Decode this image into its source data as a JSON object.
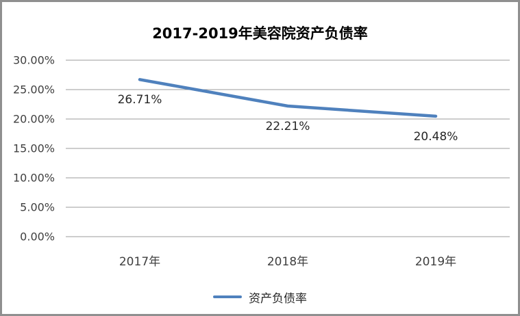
{
  "chart_data": {
    "type": "line",
    "title": "2017-2019年美容院资产负债率",
    "categories": [
      "2017年",
      "2018年",
      "2019年"
    ],
    "series": [
      {
        "name": "资产负债率",
        "values": [
          26.71,
          22.21,
          20.48
        ],
        "color": "#4F81BD"
      }
    ],
    "data_labels": [
      "26.71%",
      "22.21%",
      "20.48%"
    ],
    "y_ticks": [
      "30.00%",
      "25.00%",
      "20.00%",
      "15.00%",
      "10.00%",
      "5.00%",
      "0.00%"
    ],
    "ylim": [
      0,
      30
    ],
    "xlabel": "",
    "ylabel": "",
    "grid": true,
    "legend_position": "bottom",
    "gridline_color": "#9b9b9b",
    "text_color": "#3f3f3f"
  }
}
